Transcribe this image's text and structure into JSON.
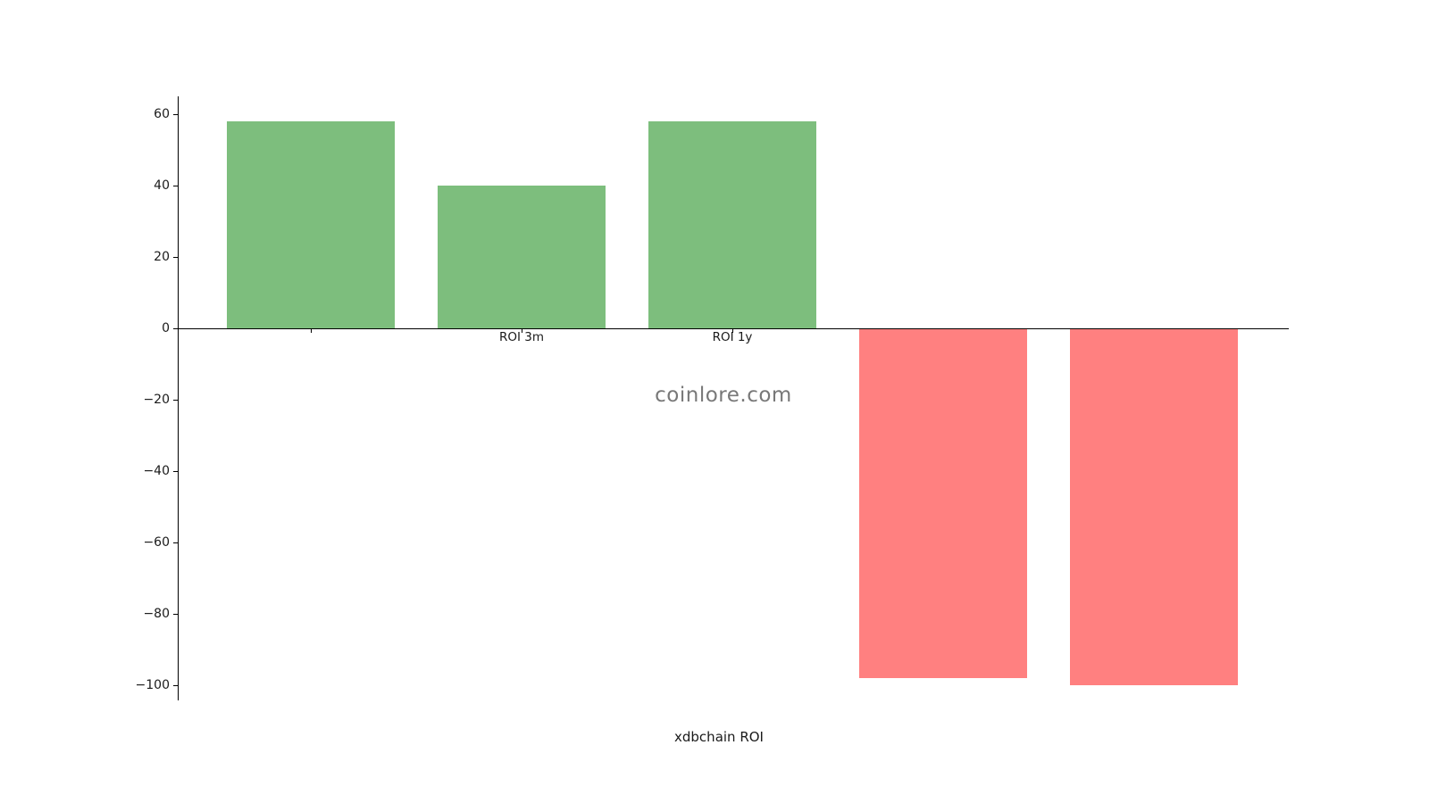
{
  "watermark": {
    "text": "coinlore.com",
    "color": "#787878"
  },
  "chart_data": {
    "type": "bar",
    "title": "",
    "xlabel": "xdbchain ROI",
    "ylabel": "",
    "categories": [
      "",
      "ROI 3m",
      "ROI 1y",
      "",
      ""
    ],
    "values": [
      58,
      40,
      58,
      -98,
      -100
    ],
    "positive_color": "#7dbe7d",
    "negative_color": "#ff8080",
    "axis_color": "#000000",
    "tick_label_color": "#1a1a1a",
    "ylim": [
      -104.25,
      65
    ],
    "yticks": [
      60,
      40,
      20,
      0,
      -20,
      -40,
      -60,
      -80,
      -100
    ],
    "ytick_labels": [
      "60",
      "40",
      "20",
      "0",
      "−20",
      "−40",
      "−60",
      "−80",
      "−100"
    ],
    "grid": false,
    "legend": null
  }
}
